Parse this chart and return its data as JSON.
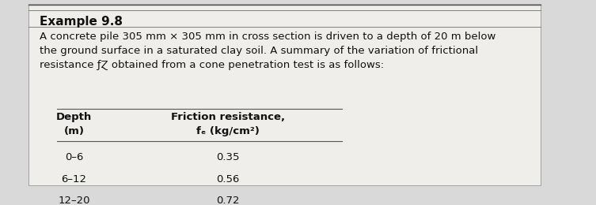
{
  "title": "Example 9.8",
  "body_text": "A concrete pile 305 mm × 305 mm in cross section is driven to a depth of 20 m below\nthe ground surface in a saturated clay soil. A summary of the variation of frictional\nresistance ƒⱿ obtained from a cone penetration test is as follows:",
  "col1_header_line1": "Depth",
  "col1_header_line2": "(m)",
  "col2_header_line1": "Friction resistance,",
  "col2_header_line2": "fₑ (kg/cm²)",
  "table_rows": [
    [
      "0–6",
      "0.35"
    ],
    [
      "6–12",
      "0.56"
    ],
    [
      "12–20",
      "0.72"
    ]
  ],
  "bg_color": "#d9d9d9",
  "box_color": "#f0eeeb",
  "title_fontsize": 11,
  "body_fontsize": 9.5,
  "table_fontsize": 9.5
}
